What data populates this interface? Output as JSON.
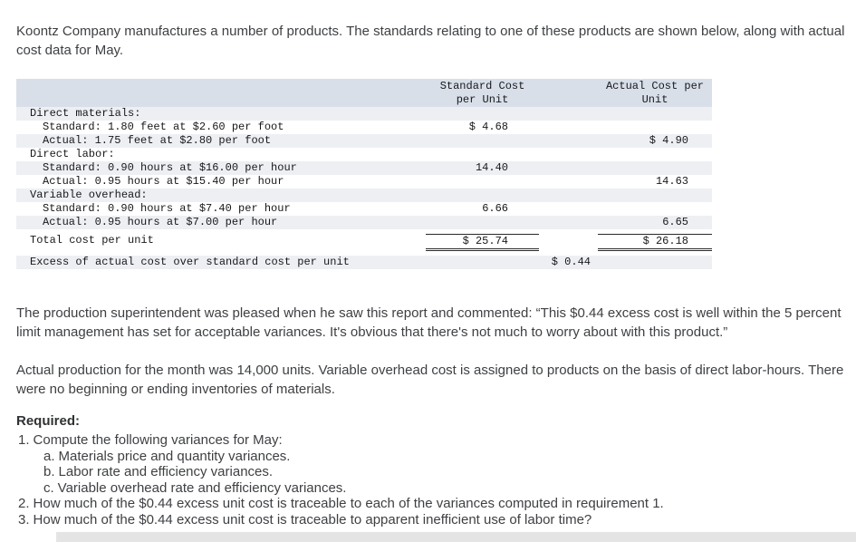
{
  "intro": "Koontz Company manufactures a number of products. The standards relating to one of these products are shown below, along with actual cost data for May.",
  "table": {
    "header": {
      "standard": "Standard Cost\nper Unit",
      "actual": "Actual Cost per\nUnit"
    },
    "rows": [
      {
        "label": "Direct materials:",
        "indent": 0,
        "std": "",
        "mid": "",
        "act": "",
        "kind": "category"
      },
      {
        "label": "Standard: 1.80 feet at $2.60 per foot",
        "indent": 1,
        "std": "$ 4.68",
        "mid": "",
        "act": "",
        "kind": "detail"
      },
      {
        "label": "Actual: 1.75 feet at $2.80 per foot",
        "indent": 1,
        "std": "",
        "mid": "",
        "act": "$ 4.90",
        "kind": "detail"
      },
      {
        "label": "Direct labor:",
        "indent": 0,
        "std": "",
        "mid": "",
        "act": "",
        "kind": "category"
      },
      {
        "label": "Standard: 0.90 hours at $16.00 per hour",
        "indent": 1,
        "std": "14.40",
        "mid": "",
        "act": "",
        "kind": "detail"
      },
      {
        "label": "Actual: 0.95 hours at $15.40 per hour",
        "indent": 1,
        "std": "",
        "mid": "",
        "act": "14.63",
        "kind": "detail"
      },
      {
        "label": "Variable overhead:",
        "indent": 0,
        "std": "",
        "mid": "",
        "act": "",
        "kind": "category"
      },
      {
        "label": "Standard: 0.90 hours at $7.40 per hour",
        "indent": 1,
        "std": "6.66",
        "mid": "",
        "act": "",
        "kind": "detail"
      },
      {
        "label": "Actual: 0.95 hours at $7.00 per hour",
        "indent": 1,
        "std": "",
        "mid": "",
        "act": "6.65",
        "kind": "detail"
      },
      {
        "label": "Total cost per unit",
        "indent": 0,
        "std": "$ 25.74",
        "mid": "",
        "act": "$ 26.18",
        "kind": "total"
      },
      {
        "label": "Excess of actual cost over standard cost per unit",
        "indent": 0,
        "std": "",
        "mid": "$ 0.44",
        "act": "",
        "kind": "excess"
      }
    ]
  },
  "paragraphs": [
    "The production superintendent was pleased when he saw this report and commented: “This $0.44 excess cost is well within the 5 percent limit management has set for acceptable variances. It's obvious that there's not much to worry about with this product.”",
    "Actual production for the month was 14,000 units. Variable overhead cost is assigned to products on the basis of direct labor-hours. There were no beginning or ending inventories of materials."
  ],
  "required": {
    "heading": "Required:",
    "items": [
      {
        "prefix": "1.",
        "text": "Compute the following variances for May:",
        "subs": [
          {
            "prefix": "a.",
            "text": "Materials price and quantity variances."
          },
          {
            "prefix": "b.",
            "text": "Labor rate and efficiency variances."
          },
          {
            "prefix": "c.",
            "text": "Variable overhead rate and efficiency variances."
          }
        ]
      },
      {
        "prefix": "2.",
        "text": "How much of the $0.44 excess unit cost is traceable to each of the variances computed in requirement 1.",
        "subs": []
      },
      {
        "prefix": "3.",
        "text": "How much of the $0.44 excess unit cost is traceable to apparent inefficient use of labor time?",
        "subs": []
      }
    ]
  }
}
